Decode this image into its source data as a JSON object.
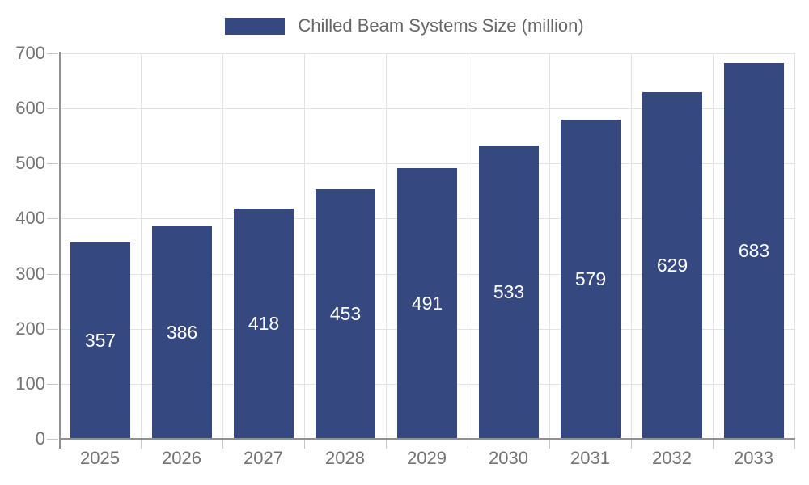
{
  "legend": {
    "label": "Chilled Beam Systems Size (million)"
  },
  "chart_data": {
    "type": "bar",
    "title": "Chilled Beam Systems Size (million)",
    "categories": [
      "2025",
      "2026",
      "2027",
      "2028",
      "2029",
      "2030",
      "2031",
      "2032",
      "2033"
    ],
    "values": [
      357,
      386,
      418,
      453,
      491,
      533,
      579,
      629,
      683
    ],
    "xlabel": "",
    "ylabel": "",
    "ylim": [
      0,
      700
    ],
    "yticks": [
      0,
      100,
      200,
      300,
      400,
      500,
      600,
      700
    ],
    "grid": true,
    "legend_position": "top-center",
    "bar_labels_shown": true,
    "colors": {
      "bar": "#364880",
      "bar_label": "#ffffff",
      "axis_text": "#737373",
      "legend_text": "#666666",
      "gridline": "#e3e3e3",
      "axis_line": "#919191",
      "tick": "#c6c6c6"
    }
  }
}
